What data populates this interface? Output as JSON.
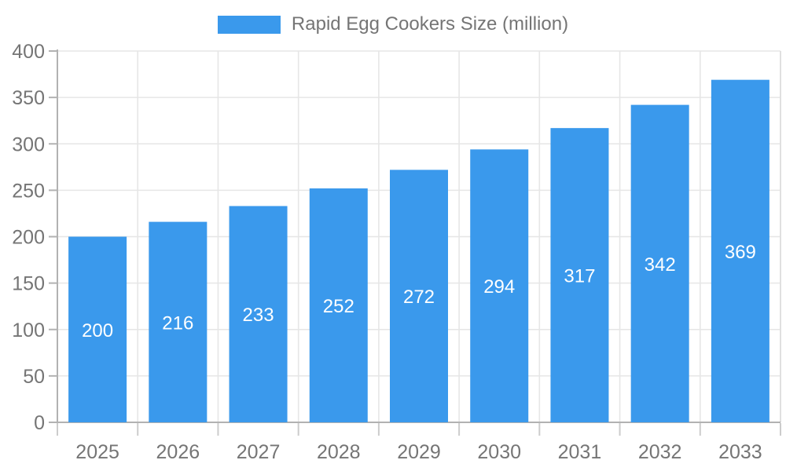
{
  "chart_data": {
    "type": "bar",
    "title": "Rapid Egg Cookers Size (million)",
    "categories": [
      "2025",
      "2026",
      "2027",
      "2028",
      "2029",
      "2030",
      "2031",
      "2032",
      "2033"
    ],
    "values": [
      200,
      216,
      233,
      252,
      272,
      294,
      317,
      342,
      369
    ],
    "xlabel": "",
    "ylabel": "",
    "ylim": [
      0,
      400
    ],
    "yticks": [
      0,
      50,
      100,
      150,
      200,
      250,
      300,
      350,
      400
    ],
    "grid": true,
    "legend_position": "top",
    "value_labels": "inside-center-white"
  },
  "legend": {
    "label": "Rapid Egg Cookers Size (million)"
  },
  "colors": {
    "bar": "#3a99ec",
    "axis": "#b2b2b2",
    "grid": "#e6e6e6",
    "border": "#e0e0e0",
    "x_tick": "#cccccc",
    "text": "#757575",
    "bar_label": "#ffffff",
    "background": "#ffffff"
  }
}
